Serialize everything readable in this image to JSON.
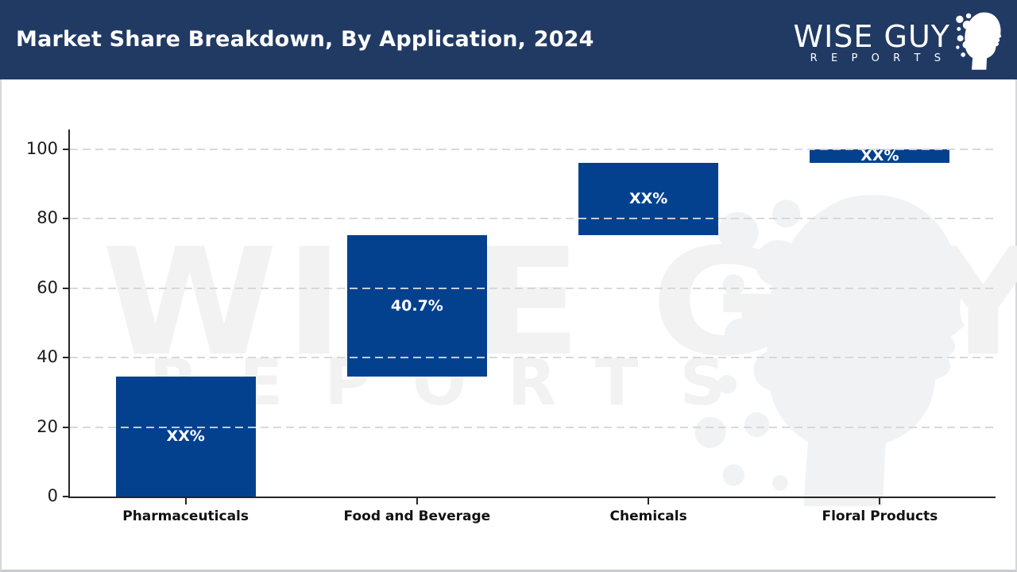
{
  "header": {
    "title": "Market Share Breakdown, By Application, 2024",
    "bg_color": "#203A64",
    "logo": {
      "line1": "WISE GUY",
      "line2": "REPORTS",
      "face_icon": "face-profile-dots-icon"
    }
  },
  "watermark": {
    "line1": "WISE GUY",
    "line2": "REPORTS"
  },
  "chart_data": {
    "type": "bar",
    "subtype": "waterfall-stacked",
    "title": "Market Share Breakdown, By Application, 2024",
    "categories": [
      "Pharmaceuticals",
      "Food and Beverage",
      "Chemicals",
      "Floral Products"
    ],
    "segments": [
      {
        "label": "Pharmaceuticals",
        "start": 0,
        "end": 34.6,
        "value_label": "XX%"
      },
      {
        "label": "Food and Beverage",
        "start": 34.6,
        "end": 75.3,
        "value_label": "40.7%"
      },
      {
        "label": "Chemicals",
        "start": 75.3,
        "end": 96.0,
        "value_label": "XX%"
      },
      {
        "label": "Floral Products",
        "start": 96.0,
        "end": 100,
        "value_label": "XX%"
      }
    ],
    "yticks": [
      0,
      20,
      40,
      60,
      80,
      100
    ],
    "ylim": [
      0,
      105
    ],
    "xlabel": "",
    "ylabel": "",
    "legend": "none",
    "grid": "horizontal-dashed",
    "bar_color": "#03418F",
    "grid_color": "#D9D9D9",
    "axis_color": "#262626"
  }
}
